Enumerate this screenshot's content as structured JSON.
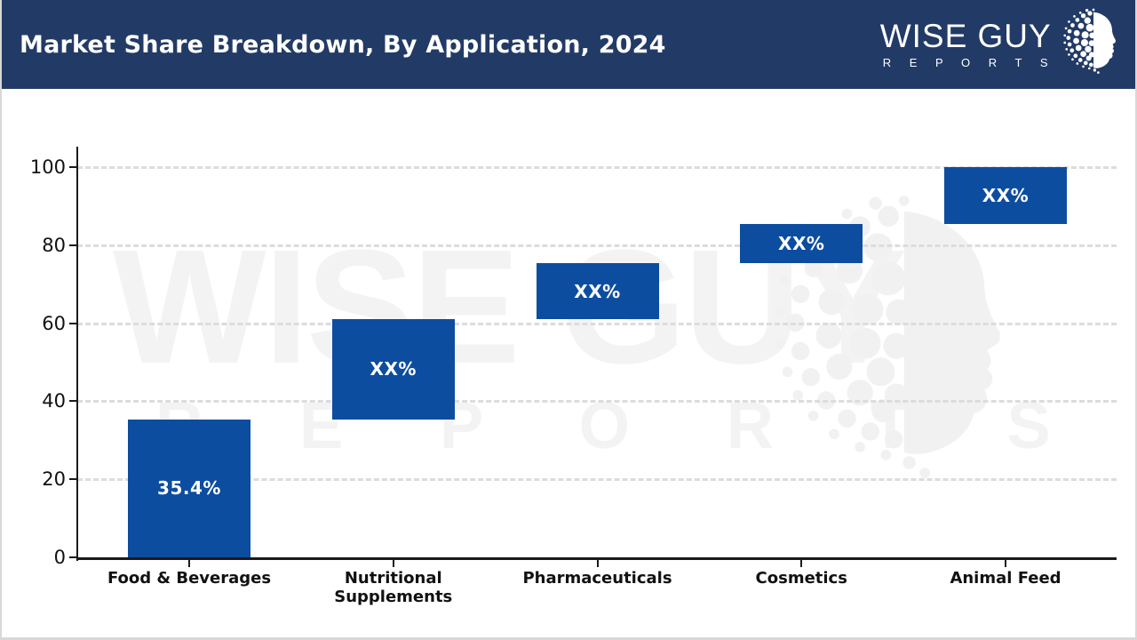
{
  "header": {
    "title": "Market Share Breakdown, By Application, 2024",
    "bg_color": "#223a66",
    "logo": {
      "line1": "WISE GUY",
      "line2": "R E P O R T S"
    }
  },
  "watermark": {
    "line1": "WISE GUY",
    "line2": "R E P O R T S"
  },
  "chart_data": {
    "type": "bar",
    "subtype": "waterfall",
    "title": "Market Share Breakdown, By Application, 2024",
    "categories": [
      "Food & Beverages",
      "Nutritional\nSupplements",
      "Pharmaceuticals",
      "Cosmetics",
      "Animal Feed"
    ],
    "segments": [
      {
        "category": "Food & Beverages",
        "start": 0,
        "end": 35.4,
        "label": "35.4%"
      },
      {
        "category": "Nutritional Supplements",
        "start": 35.4,
        "end": 61.0,
        "label": "XX%"
      },
      {
        "category": "Pharmaceuticals",
        "start": 61.0,
        "end": 75.4,
        "label": "XX%"
      },
      {
        "category": "Cosmetics",
        "start": 75.4,
        "end": 85.4,
        "label": "XX%"
      },
      {
        "category": "Animal Feed",
        "start": 85.4,
        "end": 100.0,
        "label": "XX%"
      }
    ],
    "yticks": [
      0,
      20,
      40,
      60,
      80,
      100
    ],
    "ylim": [
      0,
      105
    ],
    "xlabel": "",
    "ylabel": "",
    "grid": "horizontal-dashed",
    "legend": "none",
    "bar_color": "#0d4da0",
    "label_color": "#ffffff"
  }
}
